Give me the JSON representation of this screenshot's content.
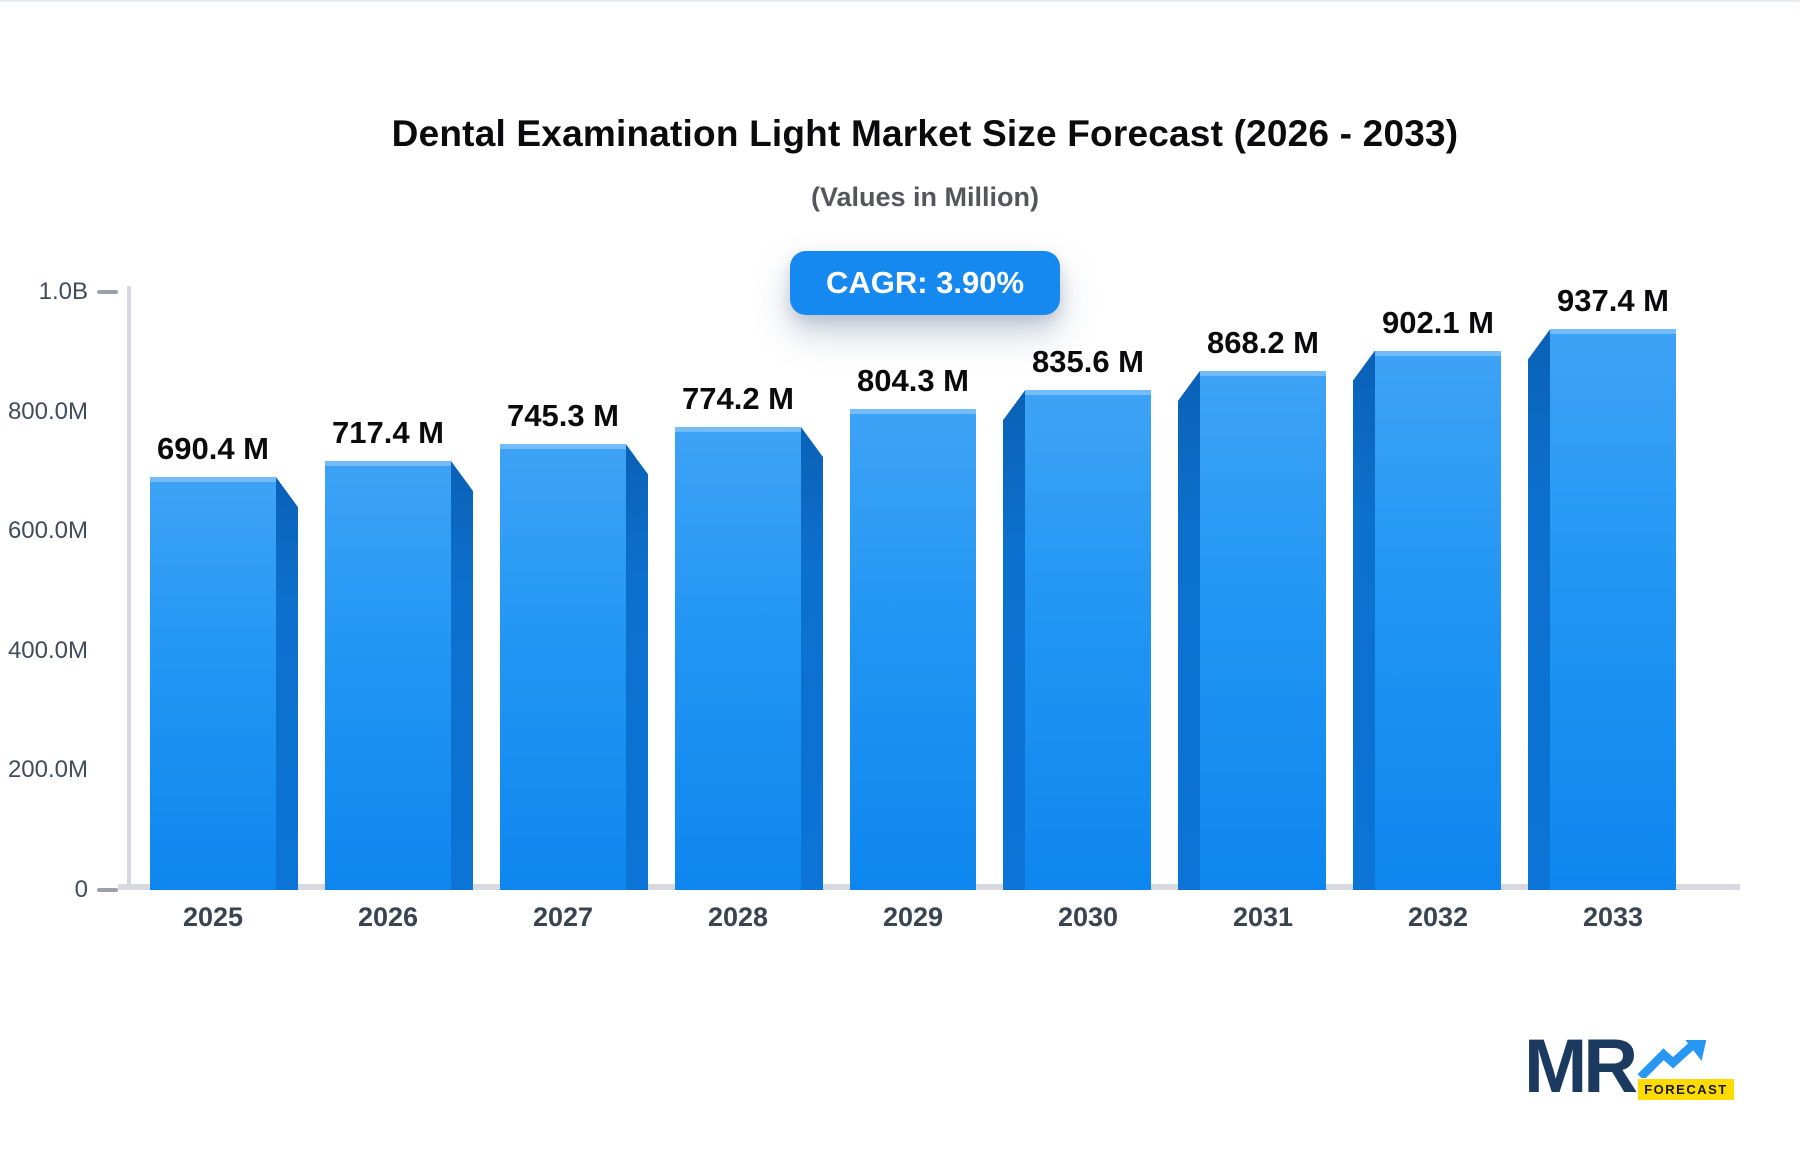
{
  "header": {
    "title": "Dental Examination Light Market Size Forecast (2026 - 2033)",
    "subtitle": "(Values in Million)",
    "cagr_badge": "CAGR: 3.90%"
  },
  "chart_data": {
    "type": "bar",
    "title": "Dental Examination Light Market Size Forecast (2026 - 2033)",
    "subtitle": "(Values in Million)",
    "cagr_percent": 3.9,
    "categories": [
      "2025",
      "2026",
      "2027",
      "2028",
      "2029",
      "2030",
      "2031",
      "2032",
      "2033"
    ],
    "values_millions": [
      690.4,
      717.4,
      745.3,
      774.2,
      804.3,
      835.6,
      868.2,
      902.1,
      937.4
    ],
    "value_labels": [
      "690.4 M",
      "717.4 M",
      "745.3 M",
      "774.2 M",
      "804.3 M",
      "835.6 M",
      "868.2 M",
      "902.1 M",
      "937.4 M"
    ],
    "y_ticks": [
      "1.0B",
      "800.0M",
      "600.0M",
      "400.0M",
      "200.0M",
      "0"
    ],
    "ylim_millions": [
      0,
      1000
    ],
    "xlabel": "",
    "ylabel": "",
    "grid": false,
    "legend": false,
    "bar_face_color": "#2196f3",
    "bar_side_color": "#0b70cd"
  },
  "logo": {
    "text": "MR",
    "tagline": "FORECAST"
  },
  "colors": {
    "accent_blue": "#1689f0",
    "axis_gray": "#d8d9df",
    "label_dark": "#0b0b0d",
    "tick_gray": "#414c5b",
    "logo_navy": "#1b3a60",
    "logo_yellow": "#ffdb00",
    "arrow_blue": "#2797f3"
  }
}
